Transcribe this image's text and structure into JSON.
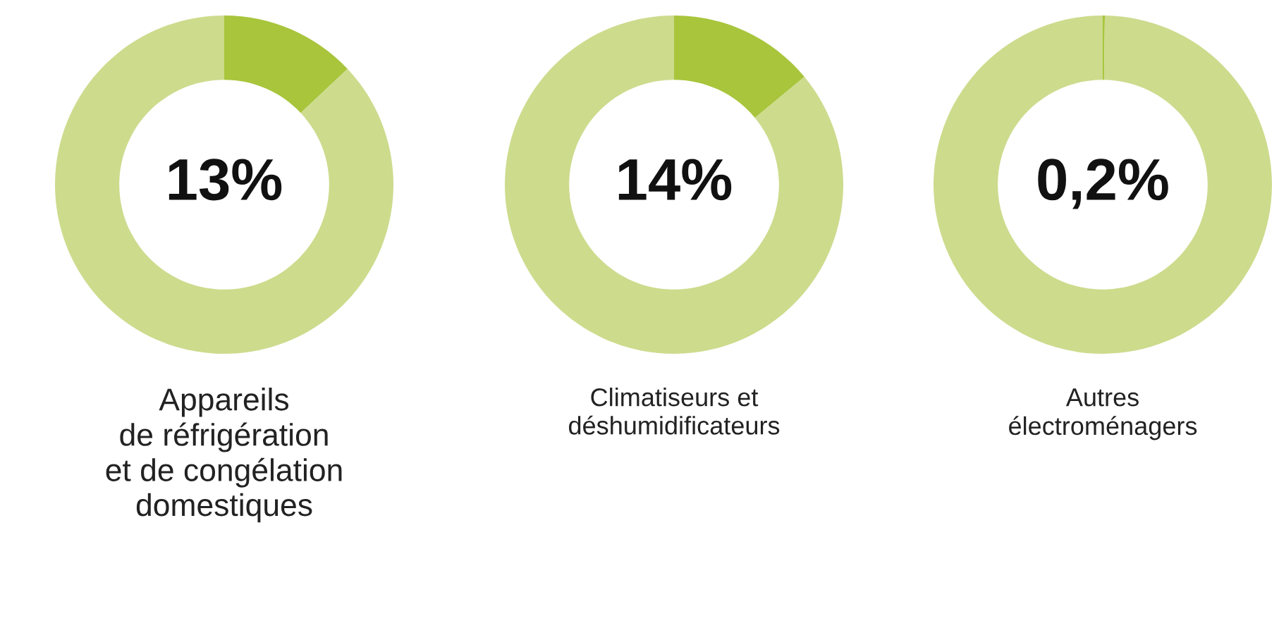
{
  "chart_data": [
    {
      "type": "donut",
      "categories": [
        null,
        null
      ],
      "values": [
        13,
        87
      ],
      "colors": [
        "#a8c53c",
        "#cddb8d"
      ],
      "annotations": [
        "13%"
      ],
      "xlabel": "Appareils\nde réfrigération\net de congélation\ndomestiques"
    },
    {
      "type": "donut",
      "categories": [
        null,
        null
      ],
      "values": [
        14,
        86
      ],
      "colors": [
        "#a8c53c",
        "#cddb8d"
      ],
      "annotations": [
        "14%"
      ],
      "xlabel": "Climatiseurs et\ndéshumidificateurs"
    },
    {
      "type": "donut",
      "categories": [
        null,
        null
      ],
      "values": [
        0.2,
        99.8
      ],
      "colors": [
        "#a8c53c",
        "#cddb8d"
      ],
      "annotations": [
        "0,2%"
      ],
      "xlabel": "Autres\nélectroménagers"
    }
  ]
}
